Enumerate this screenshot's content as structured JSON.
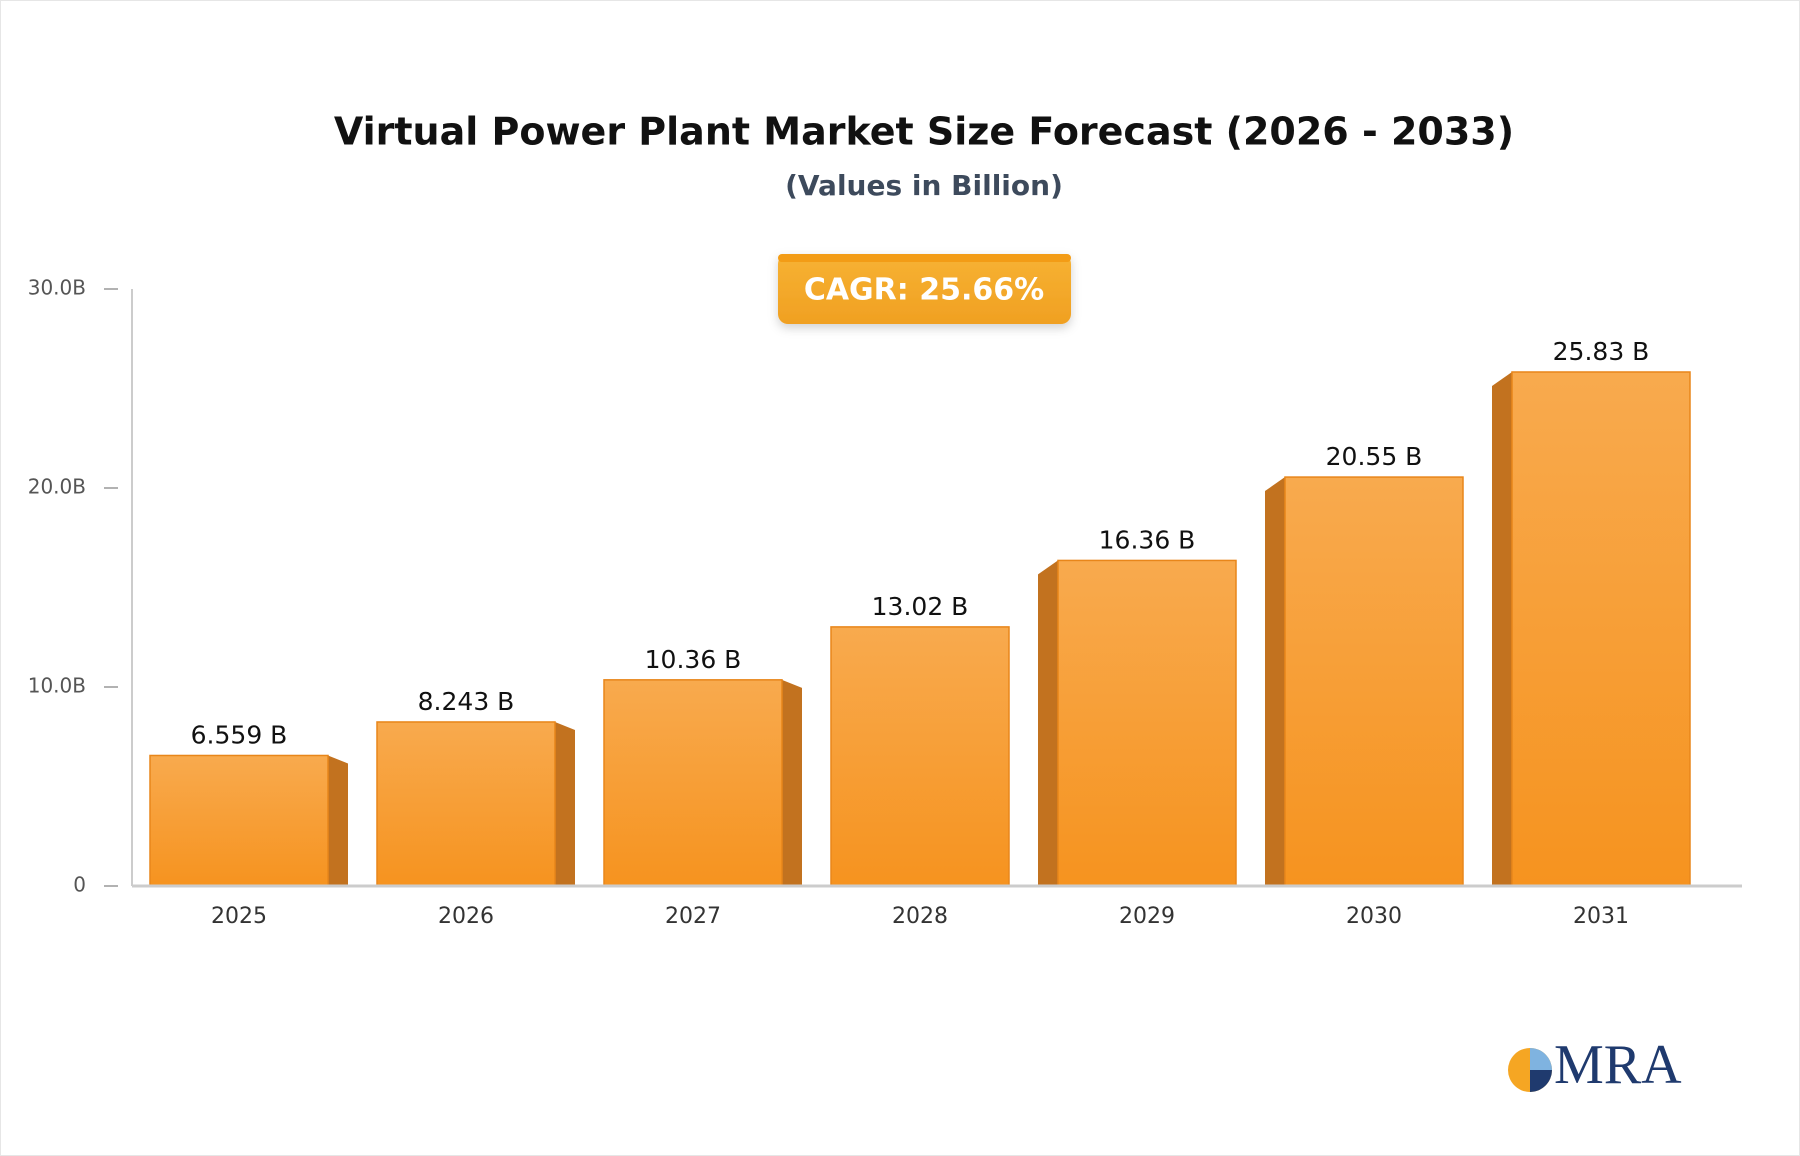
{
  "chart_data": {
    "type": "bar",
    "title": "Virtual Power Plant Market Size Forecast (2026 - 2033)",
    "subtitle": "(Values in Billion)",
    "annotation": "CAGR: 25.66%",
    "brand": "MRA",
    "categories": [
      "2025",
      "2026",
      "2027",
      "2028",
      "2029",
      "2030",
      "2031"
    ],
    "values": [
      6.559,
      8.243,
      10.36,
      13.02,
      16.36,
      20.55,
      25.83
    ],
    "value_labels": [
      "6.559 B",
      "8.243 B",
      "10.36 B",
      "13.02 B",
      "16.36 B",
      "20.55 B",
      "25.83 B"
    ],
    "color": "#f79a2e",
    "ylim": [
      0,
      30
    ],
    "yticks": [
      0,
      {
        "value": 10,
        "label": "10.0B"
      },
      {
        "value": 20,
        "label": "20.0B"
      },
      {
        "value": 30,
        "label": "30.0B"
      }
    ],
    "grid": false
  }
}
